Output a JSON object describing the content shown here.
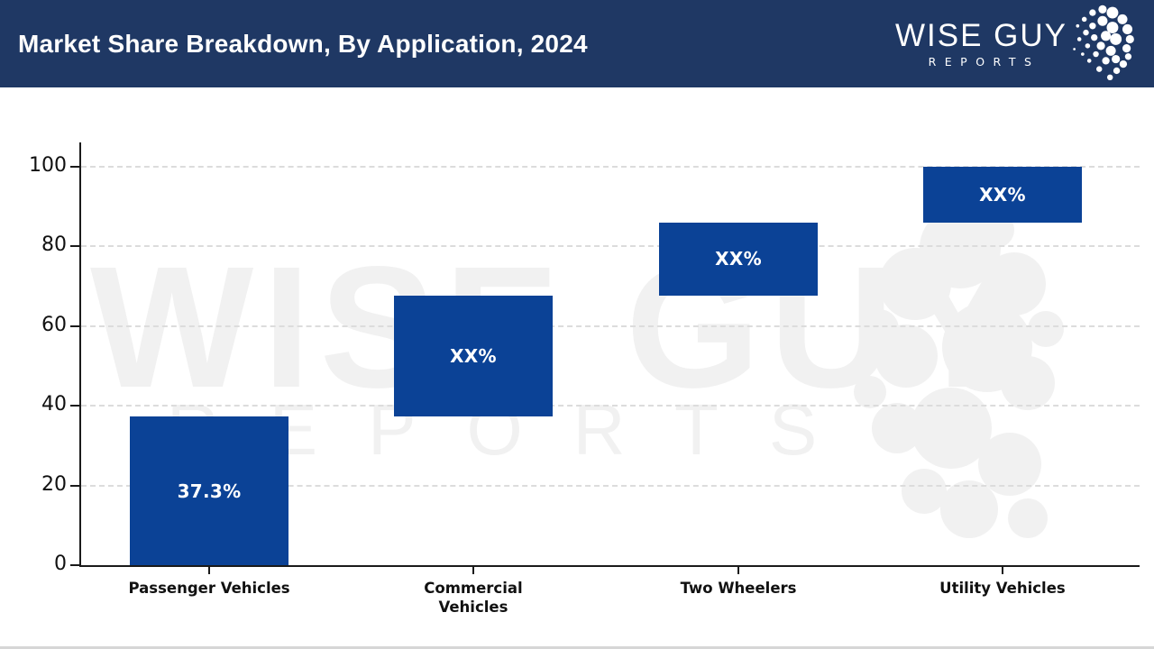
{
  "header": {
    "title": "Market Share Breakdown, By Application, 2024",
    "logo": {
      "line1": "WISE GUY",
      "line2": "REPORTS"
    }
  },
  "watermark": {
    "line1": "WISE GUY",
    "line2": "REPORTS"
  },
  "chart_data": {
    "type": "bar",
    "subtype": "floating_stacked_percent",
    "title": "Market Share Breakdown, By Application, 2024",
    "categories": [
      "Passenger Vehicles",
      "Commercial Vehicles",
      "Two Wheelers",
      "Utility Vehicles"
    ],
    "x_tick_labels": [
      "Passenger Vehicles",
      "Commercial\nVehicles",
      "Two Wheelers",
      "Utility Vehicles"
    ],
    "segments": [
      {
        "category": "Passenger Vehicles",
        "from": 0,
        "to": 37.3,
        "label": "37.3%"
      },
      {
        "category": "Commercial Vehicles",
        "from": 37.3,
        "to": 67.7,
        "label": "XX%"
      },
      {
        "category": "Two Wheelers",
        "from": 67.7,
        "to": 86,
        "label": "XX%"
      },
      {
        "category": "Utility Vehicles",
        "from": 86,
        "to": 100,
        "label": "XX%"
      }
    ],
    "y_ticks": [
      0,
      20,
      40,
      60,
      80,
      100
    ],
    "ylim": [
      0,
      106
    ],
    "xlabel": "",
    "ylabel": "",
    "grid": {
      "axis": "y",
      "style": "dashed"
    },
    "legend_position": "none",
    "colors": {
      "bar": "#0b4296",
      "bar_label": "#ffffff",
      "grid": "#dcdcdc",
      "axis": "#1a1a1a",
      "tick_text": "#111111",
      "header_bg": "#1f3864",
      "header_text": "#ffffff",
      "watermark": "#f1f1f1",
      "background": "#ffffff"
    }
  }
}
